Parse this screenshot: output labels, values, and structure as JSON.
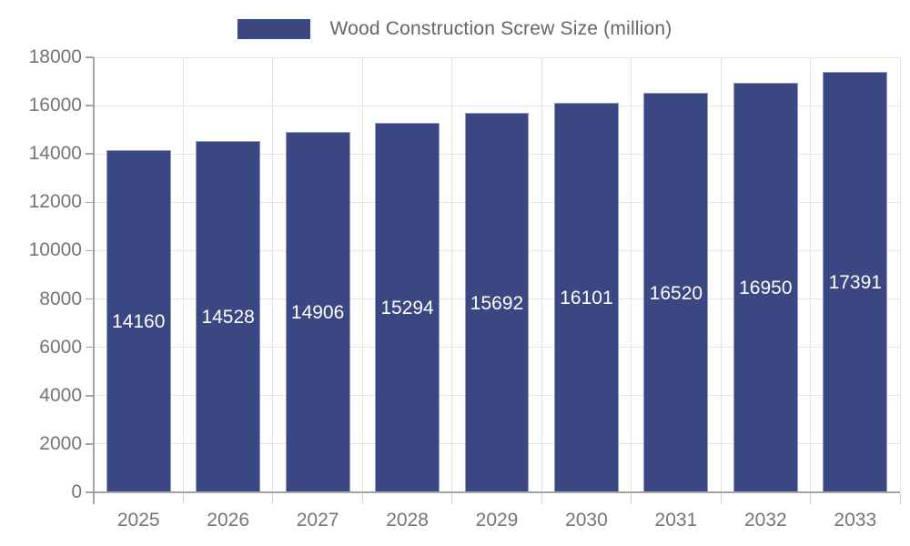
{
  "figure": {
    "legend": {
      "label": "Wood Construction Screw Size (million)"
    }
  },
  "colors": {
    "bar": "#3a4783",
    "bar_border": "rgba(255,255,255,0.45)",
    "grid": "#e4e4e6",
    "axis": "#a3a3a6",
    "x_tick": "#cfcfd2",
    "tick_text": "#757575",
    "legend_text": "#666666",
    "value_text": "#ffffff",
    "background": "#ffffff"
  },
  "chart_data": {
    "type": "bar",
    "title": "Wood Construction Screw Size (million)",
    "categories": [
      "2025",
      "2026",
      "2027",
      "2028",
      "2029",
      "2030",
      "2031",
      "2032",
      "2033"
    ],
    "values": [
      14160,
      14528,
      14906,
      15294,
      15692,
      16101,
      16520,
      16950,
      17391
    ],
    "yticks": [
      0,
      2000,
      4000,
      6000,
      8000,
      10000,
      12000,
      14000,
      16000,
      18000
    ],
    "ylim": [
      0,
      18000
    ],
    "xlabel": "",
    "ylabel": "",
    "grid": true,
    "legend_position": "top-center",
    "value_labels": "inside-center",
    "bar_width_fraction": 0.72
  }
}
